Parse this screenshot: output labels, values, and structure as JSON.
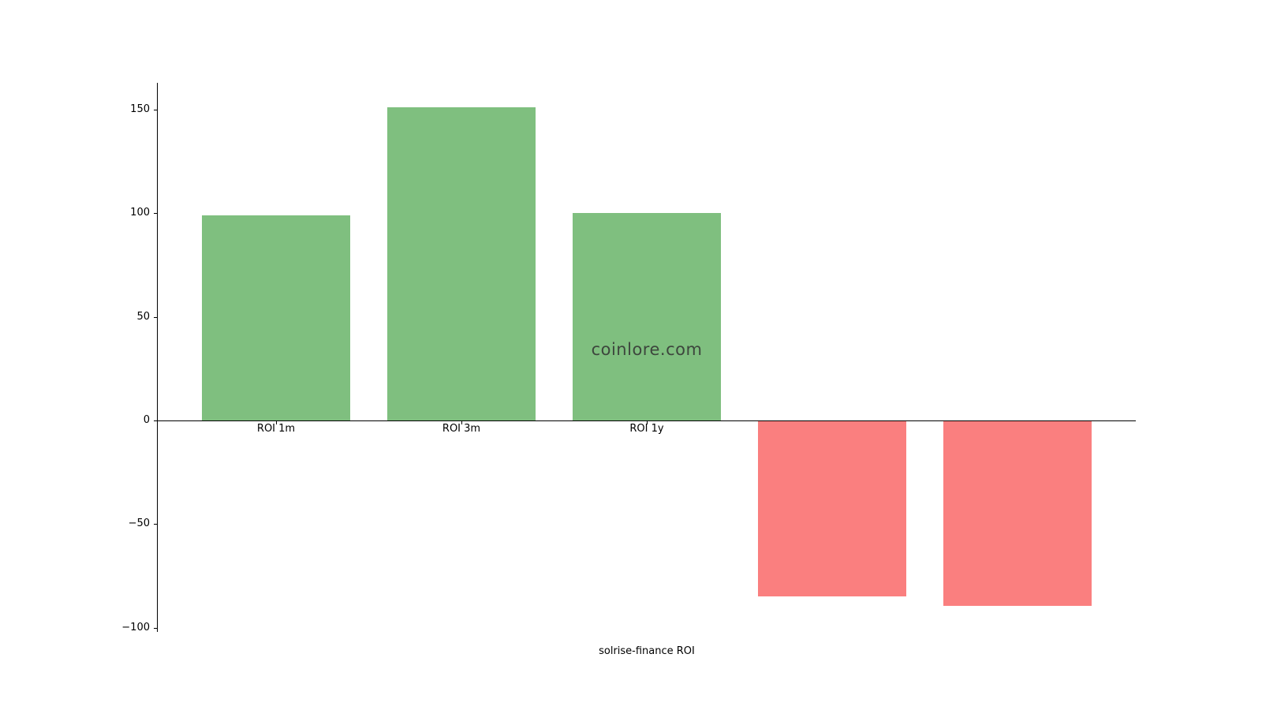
{
  "page": {
    "background_color": "#ffffff"
  },
  "chart_data": {
    "type": "bar",
    "title": "",
    "xlabel": "solrise-finance ROI",
    "ylabel": "",
    "watermark": "coinlore.com",
    "categories": [
      "ROI 1m",
      "ROI 3m",
      "ROI 1y",
      "",
      ""
    ],
    "values": [
      99,
      151,
      100,
      -85,
      -89.5
    ],
    "series": [
      {
        "name": "ROI",
        "values": [
          99,
          151,
          100,
          -85,
          -89.5
        ]
      }
    ],
    "y_ticks": [
      150,
      100,
      50,
      0,
      -50,
      -100
    ],
    "y_tick_labels": [
      "150",
      "100",
      "50",
      "0",
      "−50",
      "−100"
    ],
    "ylim": [
      -102,
      163
    ],
    "grid": false,
    "legend_position": "none",
    "colors": {
      "positive_bar": "#7fbf7f",
      "negative_bar": "#fa7f7f",
      "axis": "#000000",
      "tick_text": "#000000",
      "watermark_text": "#3d463d"
    }
  }
}
